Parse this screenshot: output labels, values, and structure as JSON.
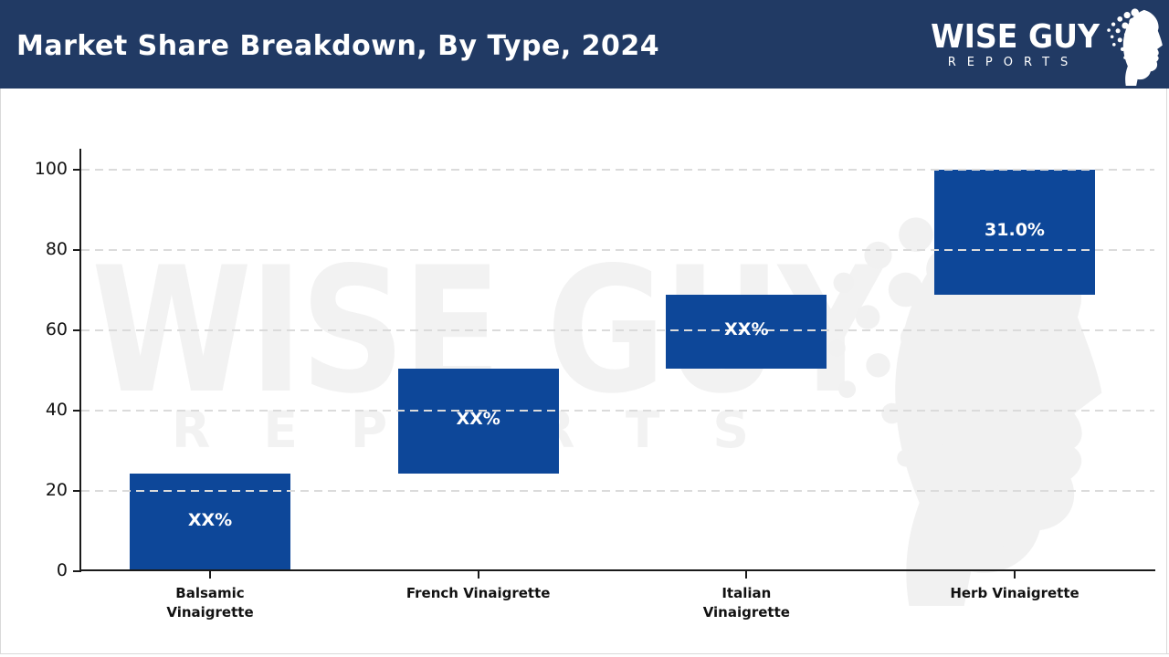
{
  "header": {
    "title": "Market Share Breakdown, By Type, 2024",
    "bg_color": "#213a64",
    "logo": {
      "line1": "WISE GUY",
      "line2": "REPORTS"
    }
  },
  "watermark": {
    "line1": "WISE GUY",
    "line2": "REPORTS"
  },
  "chart_data": {
    "type": "bar",
    "subtype": "floating-waterfall-segments",
    "title": "Market Share Breakdown, By Type, 2024",
    "categories": [
      "Balsamic\nVinaigrette",
      "French Vinaigrette",
      "Italian\nVinaigrette",
      "Herb Vinaigrette"
    ],
    "bars": [
      {
        "category": "Balsamic Vinaigrette",
        "label": "XX%",
        "base": 0,
        "top": 24.3
      },
      {
        "category": "French Vinaigrette",
        "label": "XX%",
        "base": 24.3,
        "top": 50.5
      },
      {
        "category": "Italian Vinaigrette",
        "label": "XX%",
        "base": 50.5,
        "top": 69.0
      },
      {
        "category": "Herb Vinaigrette",
        "label": "31.0%",
        "base": 69.0,
        "top": 100.0
      }
    ],
    "yticks": [
      0,
      20,
      40,
      60,
      80,
      100
    ],
    "ylim": [
      0,
      105
    ],
    "xlabel": "",
    "ylabel": "",
    "grid": "horizontal-dashed",
    "bar_color": "#0d4799",
    "grid_color": "#dbdbdb",
    "axis_color": "#1a1a1a",
    "value_label_color": "#ffffff"
  }
}
